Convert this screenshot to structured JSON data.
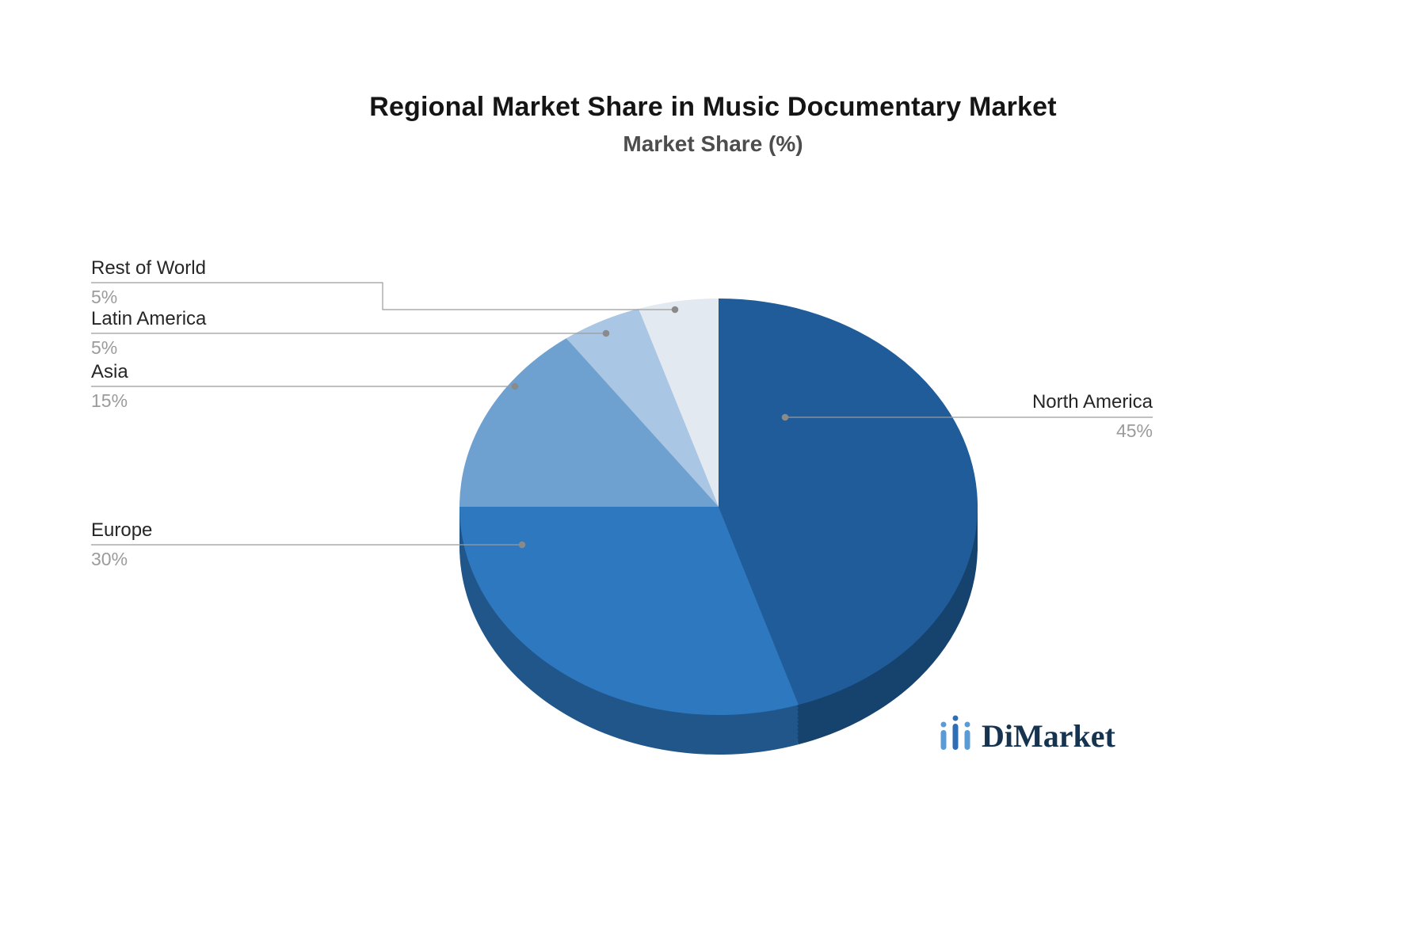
{
  "header": {
    "title": "Regional Market Share in Music Documentary Market",
    "subtitle": "Market Share (%)"
  },
  "brand": {
    "name": "DiMarket"
  },
  "chart_data": {
    "type": "pie",
    "title": "Regional Market Share in Music Documentary Market",
    "subtitle": "Market Share (%)",
    "unit": "%",
    "style": "3d-pie",
    "start_angle_deg": 0,
    "direction": "clockwise",
    "legend_position": "none",
    "categories": [
      "North America",
      "Europe",
      "Asia",
      "Latin America",
      "Rest of World"
    ],
    "values": [
      45,
      30,
      15,
      5,
      5
    ],
    "colors": [
      "#1f5c99",
      "#2e78bf",
      "#6ea1cf",
      "#a9c7e4",
      "#e3e9f1"
    ],
    "labels": [
      {
        "name": "Rest of World",
        "value": "5%"
      },
      {
        "name": "Latin America",
        "value": "5%"
      },
      {
        "name": "Asia",
        "value": "15%"
      },
      {
        "name": "Europe",
        "value": "30%"
      },
      {
        "name": "North America",
        "value": "45%"
      }
    ]
  }
}
